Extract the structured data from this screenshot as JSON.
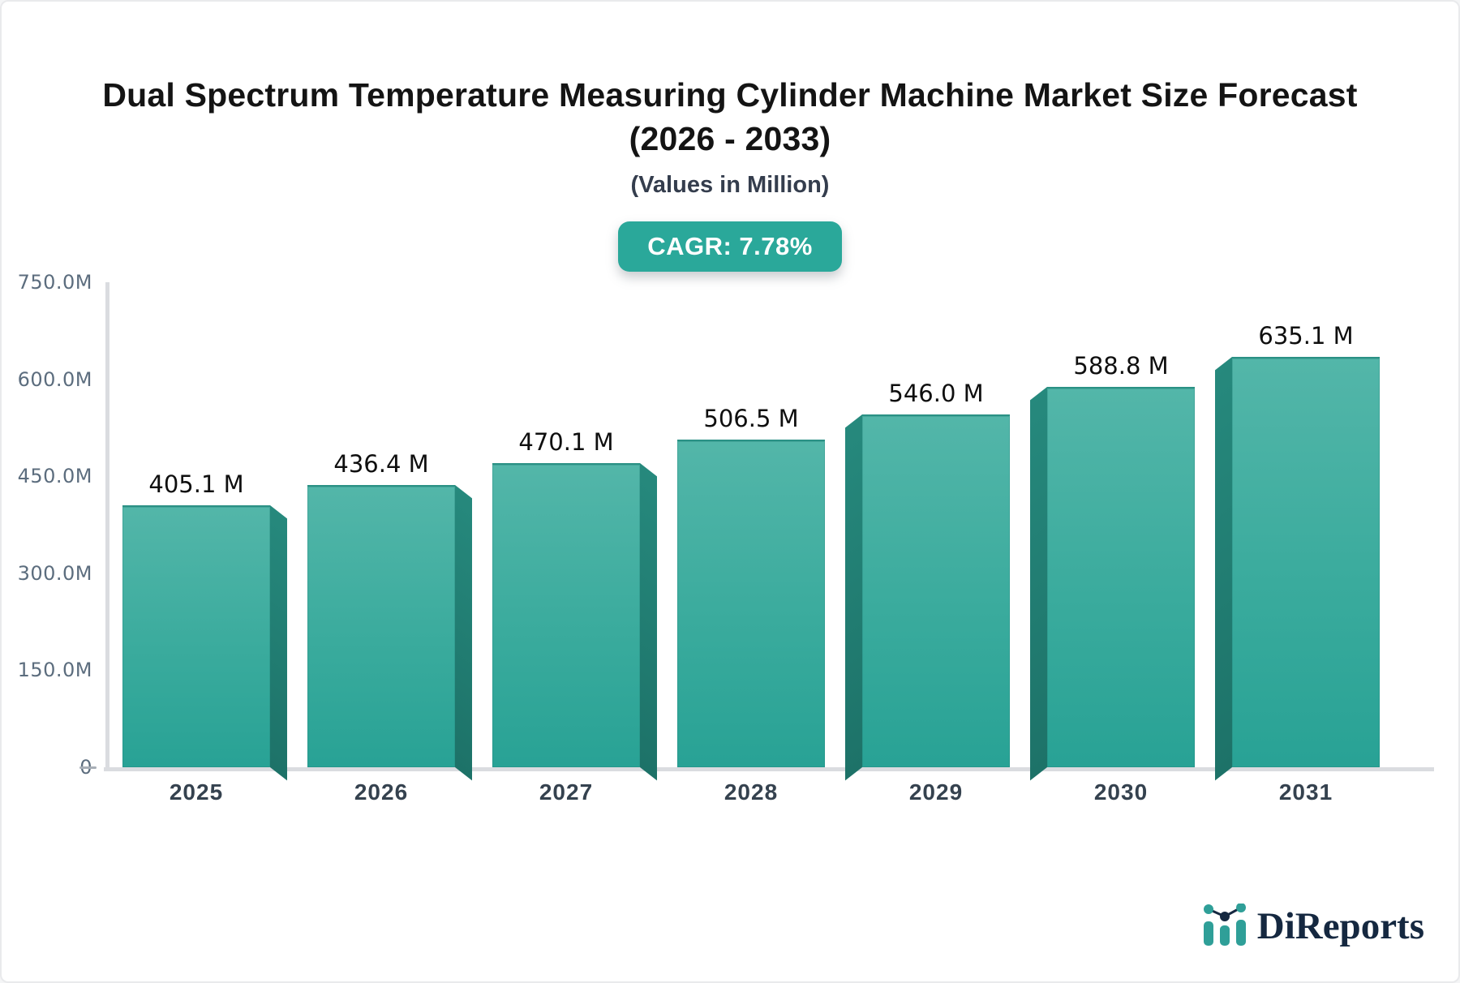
{
  "title": {
    "line1": "Dual Spectrum Temperature Measuring Cylinder Machine Market Size Forecast",
    "line2": "(2026 - 2033)"
  },
  "subtitle": "(Values in Million)",
  "badge": {
    "label": "CAGR: 7.78%"
  },
  "logo": {
    "text": "DiReports"
  },
  "colors": {
    "accent": "#2aa89a",
    "bar_top": "#53b6a9",
    "bar_bottom": "#28a295",
    "bar_side": "#1f7c72",
    "axis": "#dadce0",
    "ytick_text": "#5c6d7e",
    "xtick_text": "#35424f",
    "value_text": "#0f0f0f",
    "title_text": "#141414",
    "subtitle_text": "#343d4d",
    "logo_navy": "#152840",
    "logo_teal": "#2f9f98"
  },
  "chart_data": {
    "type": "bar",
    "title": "Dual Spectrum Temperature Measuring Cylinder Machine Market Size Forecast (2026 - 2033)",
    "subtitle": "(Values in Million)",
    "xlabel": "",
    "ylabel": "",
    "ylim": [
      0,
      750
    ],
    "grid": false,
    "legend": "none",
    "categories": [
      "2025",
      "2026",
      "2027",
      "2028",
      "2029",
      "2030",
      "2031"
    ],
    "values": [
      405.1,
      436.4,
      470.1,
      506.5,
      546.0,
      588.8,
      635.1
    ],
    "value_labels": [
      "405.1 M",
      "436.4 M",
      "470.1 M",
      "506.5 M",
      "546.0 M",
      "588.8 M",
      "635.1 M"
    ],
    "yticks": [
      {
        "label": "0",
        "value": 0
      },
      {
        "label": "150.0M",
        "value": 150
      },
      {
        "label": "300.0M",
        "value": 300
      },
      {
        "label": "450.0M",
        "value": 450
      },
      {
        "label": "600.0M",
        "value": 600
      },
      {
        "label": "750.0M",
        "value": 750
      }
    ],
    "annotations": [
      "CAGR: 7.78%"
    ]
  }
}
